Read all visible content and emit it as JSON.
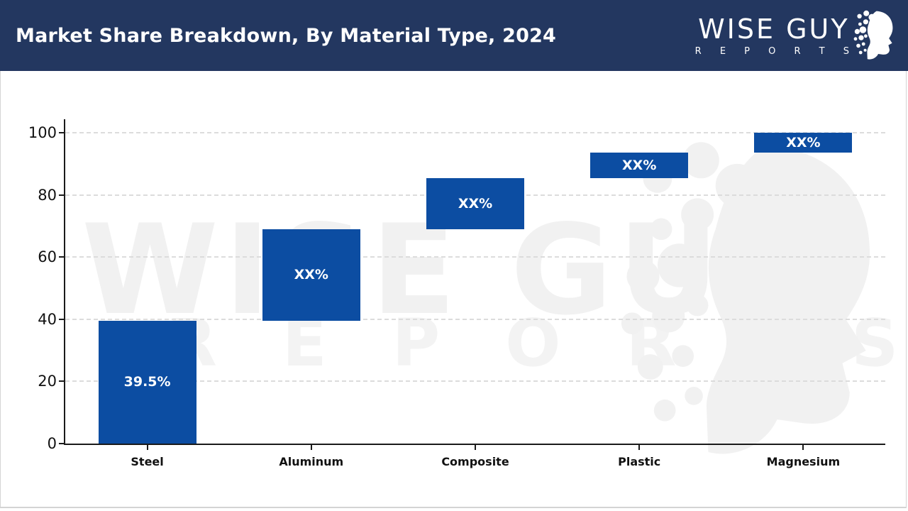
{
  "header": {
    "title": "Market Share Breakdown, By Material Type, 2024",
    "logo": {
      "name": "WISE GUY",
      "sub": "R E P O R T S"
    }
  },
  "watermark": {
    "line1": "WISE GUY",
    "line2": "R E P O R T S"
  },
  "colors": {
    "header_bg": "#233760",
    "bar": "#0C4DA2",
    "bar_label": "#FFFFFF",
    "grid": "#DCDCDC",
    "axis": "#1A1A1A",
    "watermark": "#F1F1F1",
    "frame_border": "#D4D4D4"
  },
  "chart_data": {
    "type": "bar",
    "subtype": "waterfall",
    "title": "Market Share Breakdown, By Material Type, 2024",
    "categories": [
      "Steel",
      "Aluminum",
      "Composite",
      "Plastic",
      "Magnesium"
    ],
    "series": [
      {
        "name": "Market Share (%)",
        "segment_start": [
          0,
          39.5,
          69,
          85.5,
          93.5
        ],
        "segment_end": [
          39.5,
          69,
          85.5,
          93.5,
          100
        ],
        "segment_size": [
          39.5,
          29.5,
          16.5,
          8,
          6.5
        ]
      }
    ],
    "bar_labels": [
      "39.5%",
      "XX%",
      "XX%",
      "XX%",
      "XX%"
    ],
    "xlabel": "",
    "ylabel": "",
    "ylim": [
      0,
      100
    ],
    "yticks": [
      0,
      20,
      40,
      60,
      80,
      100
    ],
    "grid": "horizontal-dashed",
    "legend": "none"
  }
}
